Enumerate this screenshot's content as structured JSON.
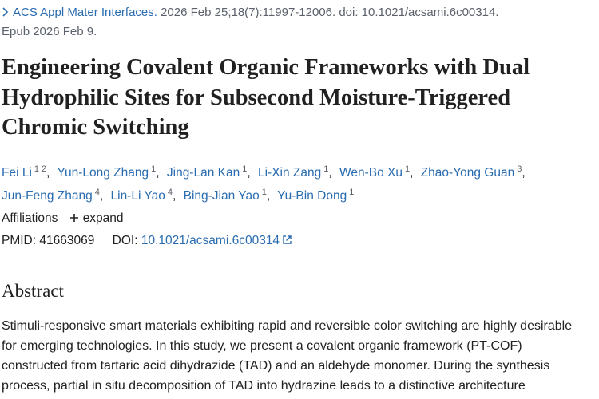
{
  "citation": {
    "journal": "ACS Appl Mater Interfaces.",
    "details": "2026 Feb 25;18(7):11997-12006. doi: 10.1021/acsami.6c00314.",
    "epub": "Epub 2026 Feb 9."
  },
  "title": "Engineering Covalent Organic Frameworks with Dual Hydrophilic Sites for Subsecond Moisture-Triggered Chromic Switching",
  "separator": ",",
  "authors": [
    {
      "name": "Fei Li",
      "affiliations": [
        1,
        2
      ]
    },
    {
      "name": "Yun-Long Zhang",
      "affiliations": [
        1
      ]
    },
    {
      "name": "Jing-Lan Kan",
      "affiliations": [
        1
      ]
    },
    {
      "name": "Li-Xin Zang",
      "affiliations": [
        1
      ]
    },
    {
      "name": "Wen-Bo Xu",
      "affiliations": [
        1
      ]
    },
    {
      "name": "Zhao-Yong Guan",
      "affiliations": [
        3
      ]
    },
    {
      "name": "Jun-Feng Zhang",
      "affiliations": [
        4
      ]
    },
    {
      "name": "Lin-Li Yao",
      "affiliations": [
        4
      ]
    },
    {
      "name": "Bing-Jian Yao",
      "affiliations": [
        1
      ]
    },
    {
      "name": "Yu-Bin Dong",
      "affiliations": [
        1
      ]
    }
  ],
  "affiliations": {
    "label": "Affiliations",
    "toggle": "expand"
  },
  "identifiers": {
    "pmid_label": "PMID:",
    "pmid": "41663069",
    "doi_label": "DOI:",
    "doi": "10.1021/acsami.6c00314"
  },
  "abstract": {
    "heading": "Abstract",
    "lines": [
      "Stimuli-responsive smart materials exhibiting rapid and reversible color switching are highly desirable",
      "for emerging technologies. In this study, we present a covalent organic framework (PT-COF)",
      "constructed from tartaric acid dihydrazide (TAD) and an aldehyde monomer. During the synthesis",
      "process, partial in situ decomposition of TAD into hydrazine leads to a distinctive architecture"
    ]
  }
}
